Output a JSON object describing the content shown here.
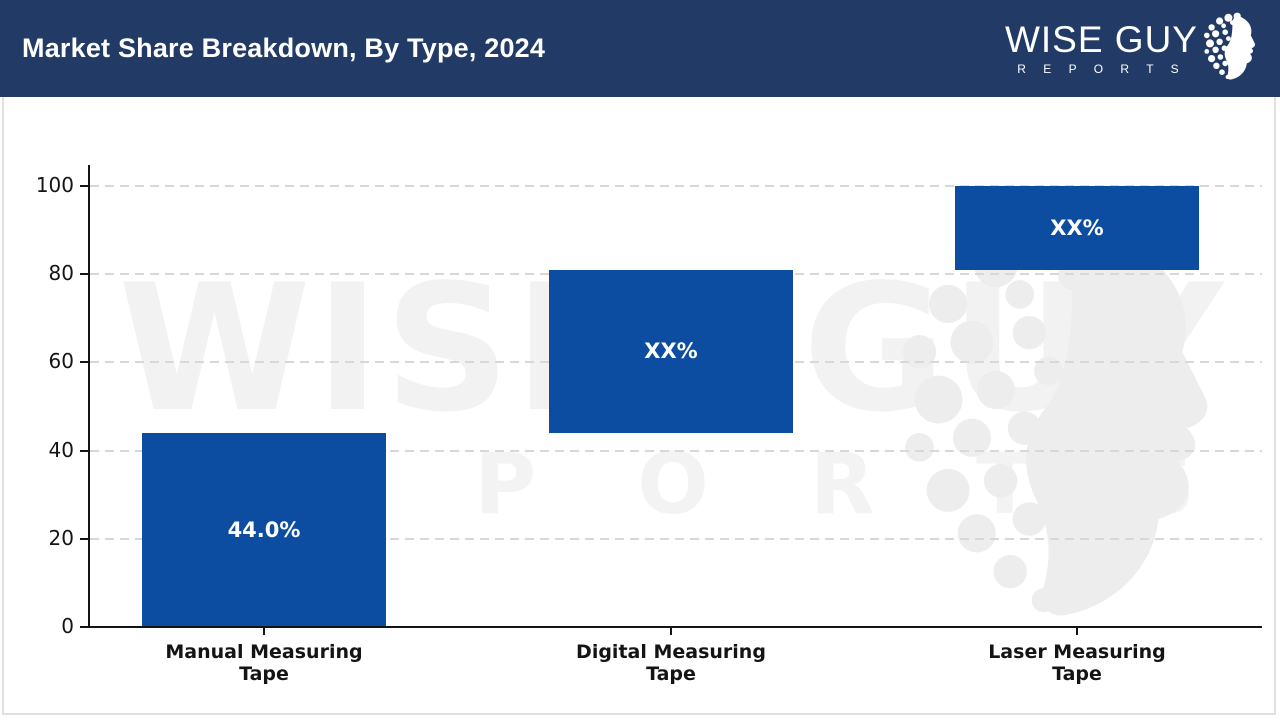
{
  "header": {
    "title": "Market Share Breakdown, By Type, 2024",
    "bg_color": "#213A66",
    "logo": {
      "line1": "WISE GUY",
      "line2": "R E P O R T S"
    }
  },
  "watermark": {
    "line1": "WISE GUY",
    "line2": "R E P O R T S"
  },
  "chart_data": {
    "type": "bar",
    "variant": "waterfall",
    "title": "Market Share Breakdown, By Type, 2024",
    "categories": [
      "Manual Measuring Tape",
      "Digital Measuring Tape",
      "Laser Measuring Tape"
    ],
    "category_lines": [
      [
        "Manual Measuring",
        "Tape"
      ],
      [
        "Digital Measuring",
        "Tape"
      ],
      [
        "Laser Measuring",
        "Tape"
      ]
    ],
    "segments": [
      {
        "category": "Manual Measuring Tape",
        "start": 0,
        "end": 44,
        "label": "44.0%"
      },
      {
        "category": "Digital Measuring Tape",
        "start": 44,
        "end": 81,
        "label": "XX%"
      },
      {
        "category": "Laser Measuring Tape",
        "start": 81,
        "end": 100,
        "label": "XX%"
      }
    ],
    "ylim": [
      0,
      100
    ],
    "yticks": [
      0,
      20,
      40,
      60,
      80,
      100
    ],
    "xlabel": "",
    "ylabel": "",
    "bar_color": "#0C4DA2",
    "value_label_color": "#FFFFFF",
    "grid": "dashed-horizontal",
    "legend": "none"
  }
}
